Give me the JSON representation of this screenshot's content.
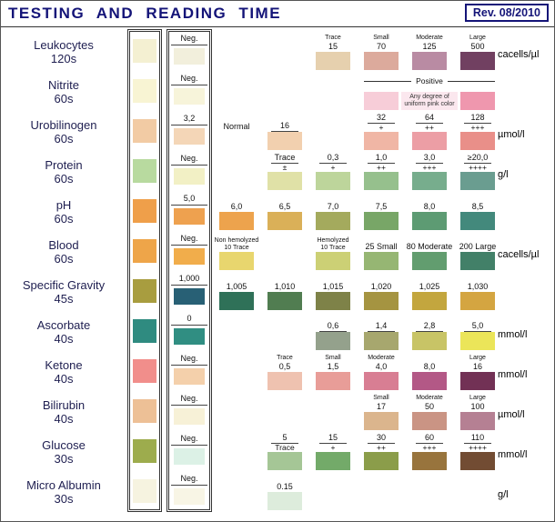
{
  "header": {
    "title": "TESTING AND READING TIME",
    "revision": "Rev. 08/2010"
  },
  "accent_navy": "#141478",
  "rows": [
    {
      "name": "Leukocytes",
      "time": "120s",
      "unit": "cacells/µl",
      "strip_color": "#f4f0d2",
      "neg": {
        "label": "Neg.",
        "color": "#f2efdc"
      },
      "pads": [
        {
          "col": 4,
          "top": "Trace",
          "value": "15",
          "color": "#e6d0ae"
        },
        {
          "col": 5,
          "top": "Small",
          "value": "70",
          "color": "#dcaa9c"
        },
        {
          "col": 6,
          "top": "Moderate",
          "value": "125",
          "color": "#b98ba3"
        },
        {
          "col": 7,
          "top": "Large",
          "value": "500",
          "color": "#714061"
        }
      ]
    },
    {
      "name": "Nitrite",
      "time": "60s",
      "unit": "",
      "strip_color": "#f8f4d3",
      "neg": {
        "label": "Neg.",
        "color": "#f7f4da"
      },
      "positive": {
        "label": "Positive",
        "note": [
          "Any degree of",
          "uniform pink color"
        ],
        "pads": [
          {
            "col": 5,
            "color": "#f7cdd8"
          },
          {
            "col": 7,
            "color": "#ef97ae"
          }
        ]
      },
      "pads": []
    },
    {
      "name": "Urobilinogen",
      "time": "60s",
      "unit": "µmol/l",
      "strip_color": "#f2cba4",
      "neg": {
        "label": "3,2",
        "color": "#f4d6b7"
      },
      "pretext": {
        "col": 2,
        "text": "Normal"
      },
      "pads": [
        {
          "col": 3,
          "value": "16",
          "rule": true,
          "color": "#f2d0af"
        },
        {
          "col": 5,
          "value": "32",
          "rule": true,
          "plus": "+",
          "color": "#f0b6a5"
        },
        {
          "col": 6,
          "value": "64",
          "rule": true,
          "plus": "++",
          "color": "#ec9ea5"
        },
        {
          "col": 7,
          "value": "128",
          "rule": true,
          "plus": "+++",
          "color": "#e98f89"
        }
      ]
    },
    {
      "name": "Protein",
      "time": "60s",
      "unit": "g/l",
      "strip_color": "#b8da9f",
      "neg": {
        "label": "Neg.",
        "color": "#f2f0c5"
      },
      "pads": [
        {
          "col": 3,
          "value": "Trace",
          "rule": true,
          "plus": "±",
          "color": "#e0e1a7"
        },
        {
          "col": 4,
          "value": "0,3",
          "rule": true,
          "plus": "+",
          "color": "#bdd59b"
        },
        {
          "col": 5,
          "value": "1,0",
          "rule": true,
          "plus": "++",
          "color": "#96c08d"
        },
        {
          "col": 6,
          "value": "3,0",
          "rule": true,
          "plus": "+++",
          "color": "#77ad8d"
        },
        {
          "col": 7,
          "value": "≥20,0",
          "rule": true,
          "plus": "++++",
          "color": "#6a9d90"
        }
      ]
    },
    {
      "name": "pH",
      "time": "60s",
      "unit": "",
      "strip_color": "#ef9f4a",
      "neg": {
        "label": "5,0",
        "color": "#eea14f"
      },
      "pads": [
        {
          "col": 2,
          "value": "6,0",
          "color": "#eda34d"
        },
        {
          "col": 3,
          "value": "6,5",
          "color": "#dab058"
        },
        {
          "col": 4,
          "value": "7,0",
          "color": "#a4aa5d"
        },
        {
          "col": 5,
          "value": "7,5",
          "color": "#78a667"
        },
        {
          "col": 6,
          "value": "8,0",
          "color": "#5d9b73"
        },
        {
          "col": 7,
          "value": "8,5",
          "color": "#43897c"
        }
      ]
    },
    {
      "name": "Blood",
      "time": "60s",
      "unit": "cacells/µl",
      "strip_color": "#eea549",
      "neg": {
        "label": "Neg.",
        "color": "#f1ad4b"
      },
      "pads": [
        {
          "col": 2,
          "top2": [
            "Non hemolyzed",
            "10 Trace"
          ],
          "color": "#e8d66e",
          "speckled": true
        },
        {
          "col": 4,
          "top2": [
            "Hemolyzed",
            "10 Trace"
          ],
          "color": "#ccd075"
        },
        {
          "col": 5,
          "value": "25 Small",
          "color": "#96b673"
        },
        {
          "col": 6,
          "value": "80 Moderate",
          "color": "#629d6f"
        },
        {
          "col": 7,
          "value": "200 Large",
          "color": "#428068"
        }
      ]
    },
    {
      "name": "Specific Gravity",
      "time": "45s",
      "unit": "",
      "strip_color": "#a89d3f",
      "neg": {
        "label": "1,000",
        "color": "#286075"
      },
      "pads": [
        {
          "col": 2,
          "value": "1,005",
          "color": "#2f7158"
        },
        {
          "col": 3,
          "value": "1,010",
          "color": "#517d51"
        },
        {
          "col": 4,
          "value": "1,015",
          "color": "#7e8248"
        },
        {
          "col": 5,
          "value": "1,020",
          "color": "#a59441"
        },
        {
          "col": 6,
          "value": "1,025",
          "color": "#c3a63e"
        },
        {
          "col": 7,
          "value": "1,030",
          "color": "#d4a541"
        }
      ]
    },
    {
      "name": "Ascorbate",
      "time": "40s",
      "unit": "mmol/l",
      "strip_color": "#2f8b80",
      "neg": {
        "label": "0",
        "color": "#308e82"
      },
      "pads": [
        {
          "col": 4,
          "value": "0,6",
          "rule": true,
          "color": "#94a18c"
        },
        {
          "col": 5,
          "value": "1,4",
          "rule": true,
          "color": "#a7a76e"
        },
        {
          "col": 6,
          "value": "2,8",
          "rule": true,
          "color": "#c8c466"
        },
        {
          "col": 7,
          "value": "5,0",
          "rule": true,
          "color": "#ebe559"
        }
      ]
    },
    {
      "name": "Ketone",
      "time": "40s",
      "unit": "mmol/l",
      "strip_color": "#f18e8b",
      "neg": {
        "label": "Neg.",
        "color": "#f4d0ab"
      },
      "pads": [
        {
          "col": 3,
          "top": "Trace",
          "value": "0,5",
          "color": "#efc2b0"
        },
        {
          "col": 4,
          "top": "Small",
          "value": "1,5",
          "color": "#e89d98"
        },
        {
          "col": 5,
          "top": "Moderate",
          "value": "4,0",
          "color": "#d87e93"
        },
        {
          "col": 6,
          "value": "8,0",
          "color": "#b35886"
        },
        {
          "col": 7,
          "top": "Large",
          "value": "16",
          "color": "#723155"
        }
      ]
    },
    {
      "name": "Bilirubin",
      "time": "40s",
      "unit": "µmol/l",
      "strip_color": "#edc096",
      "neg": {
        "label": "Neg.",
        "color": "#f7f1d7"
      },
      "pads": [
        {
          "col": 5,
          "top": "Small",
          "value": "17",
          "color": "#dbb58d"
        },
        {
          "col": 6,
          "top": "Moderate",
          "value": "50",
          "color": "#ca9484"
        },
        {
          "col": 7,
          "top": "Large",
          "value": "100",
          "color": "#b58093"
        }
      ]
    },
    {
      "name": "Glucose",
      "time": "30s",
      "unit": "mmol/l",
      "strip_color": "#9dac4d",
      "neg": {
        "label": "Neg.",
        "color": "#dcf1e6"
      },
      "pads": [
        {
          "col": 3,
          "value": "5",
          "rule": true,
          "plus": "Trace",
          "color": "#a5c696"
        },
        {
          "col": 4,
          "value": "15",
          "rule": true,
          "plus": "+",
          "color": "#73aa69"
        },
        {
          "col": 5,
          "value": "30",
          "rule": true,
          "plus": "++",
          "color": "#8b9d4a"
        },
        {
          "col": 6,
          "value": "60",
          "rule": true,
          "plus": "+++",
          "color": "#98743d"
        },
        {
          "col": 7,
          "value": "110",
          "rule": true,
          "plus": "++++",
          "color": "#724c33"
        }
      ]
    },
    {
      "name": "Micro Albumin",
      "time": "30s",
      "unit": "g/l",
      "strip_color": "#f6f3e0",
      "neg": {
        "label": "Neg.",
        "color": "#f8f5e5"
      },
      "pads": [
        {
          "col": 3,
          "value": "0.15",
          "color": "#ddecdc"
        }
      ]
    }
  ]
}
